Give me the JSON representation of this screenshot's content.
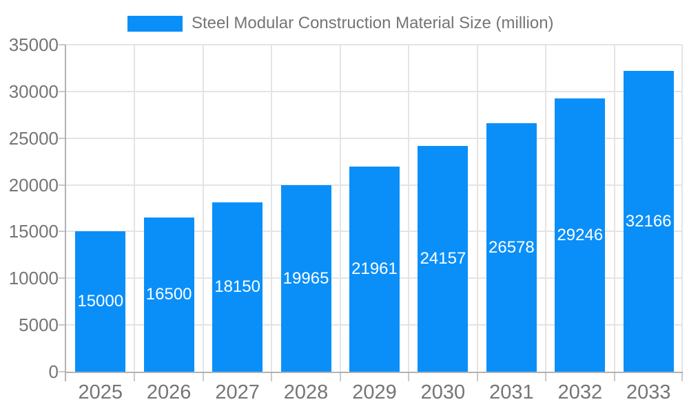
{
  "chart_data": {
    "type": "bar",
    "title": "Steel Modular Construction Material Size (million)",
    "categories": [
      "2025",
      "2026",
      "2027",
      "2028",
      "2029",
      "2030",
      "2031",
      "2032",
      "2033"
    ],
    "values": [
      15000,
      16500,
      18150,
      19965,
      21961,
      24157,
      26578,
      29246,
      32166
    ],
    "series": [
      {
        "name": "Steel Modular Construction Material Size (million)",
        "values": [
          15000,
          16500,
          18150,
          19965,
          21961,
          24157,
          26578,
          29246,
          32166
        ]
      }
    ],
    "xlabel": "",
    "ylabel": "",
    "ylim": [
      0,
      35000
    ],
    "ytick_step": 5000,
    "ytick_labels": [
      "0",
      "5000",
      "10000",
      "15000",
      "20000",
      "25000",
      "30000",
      "35000"
    ],
    "grid": true,
    "legend_position": "top",
    "value_labels_shown": true,
    "value_label_position": "inside-center",
    "colors": {
      "bar": "#0a8ff9",
      "axis_text": "#757575",
      "value_label": "#ffffff",
      "grid_line": "#e4e4e4",
      "tick_mark": "#c9c9c9",
      "axis_line": "#b2b2b2",
      "background": "#ffffff"
    }
  }
}
